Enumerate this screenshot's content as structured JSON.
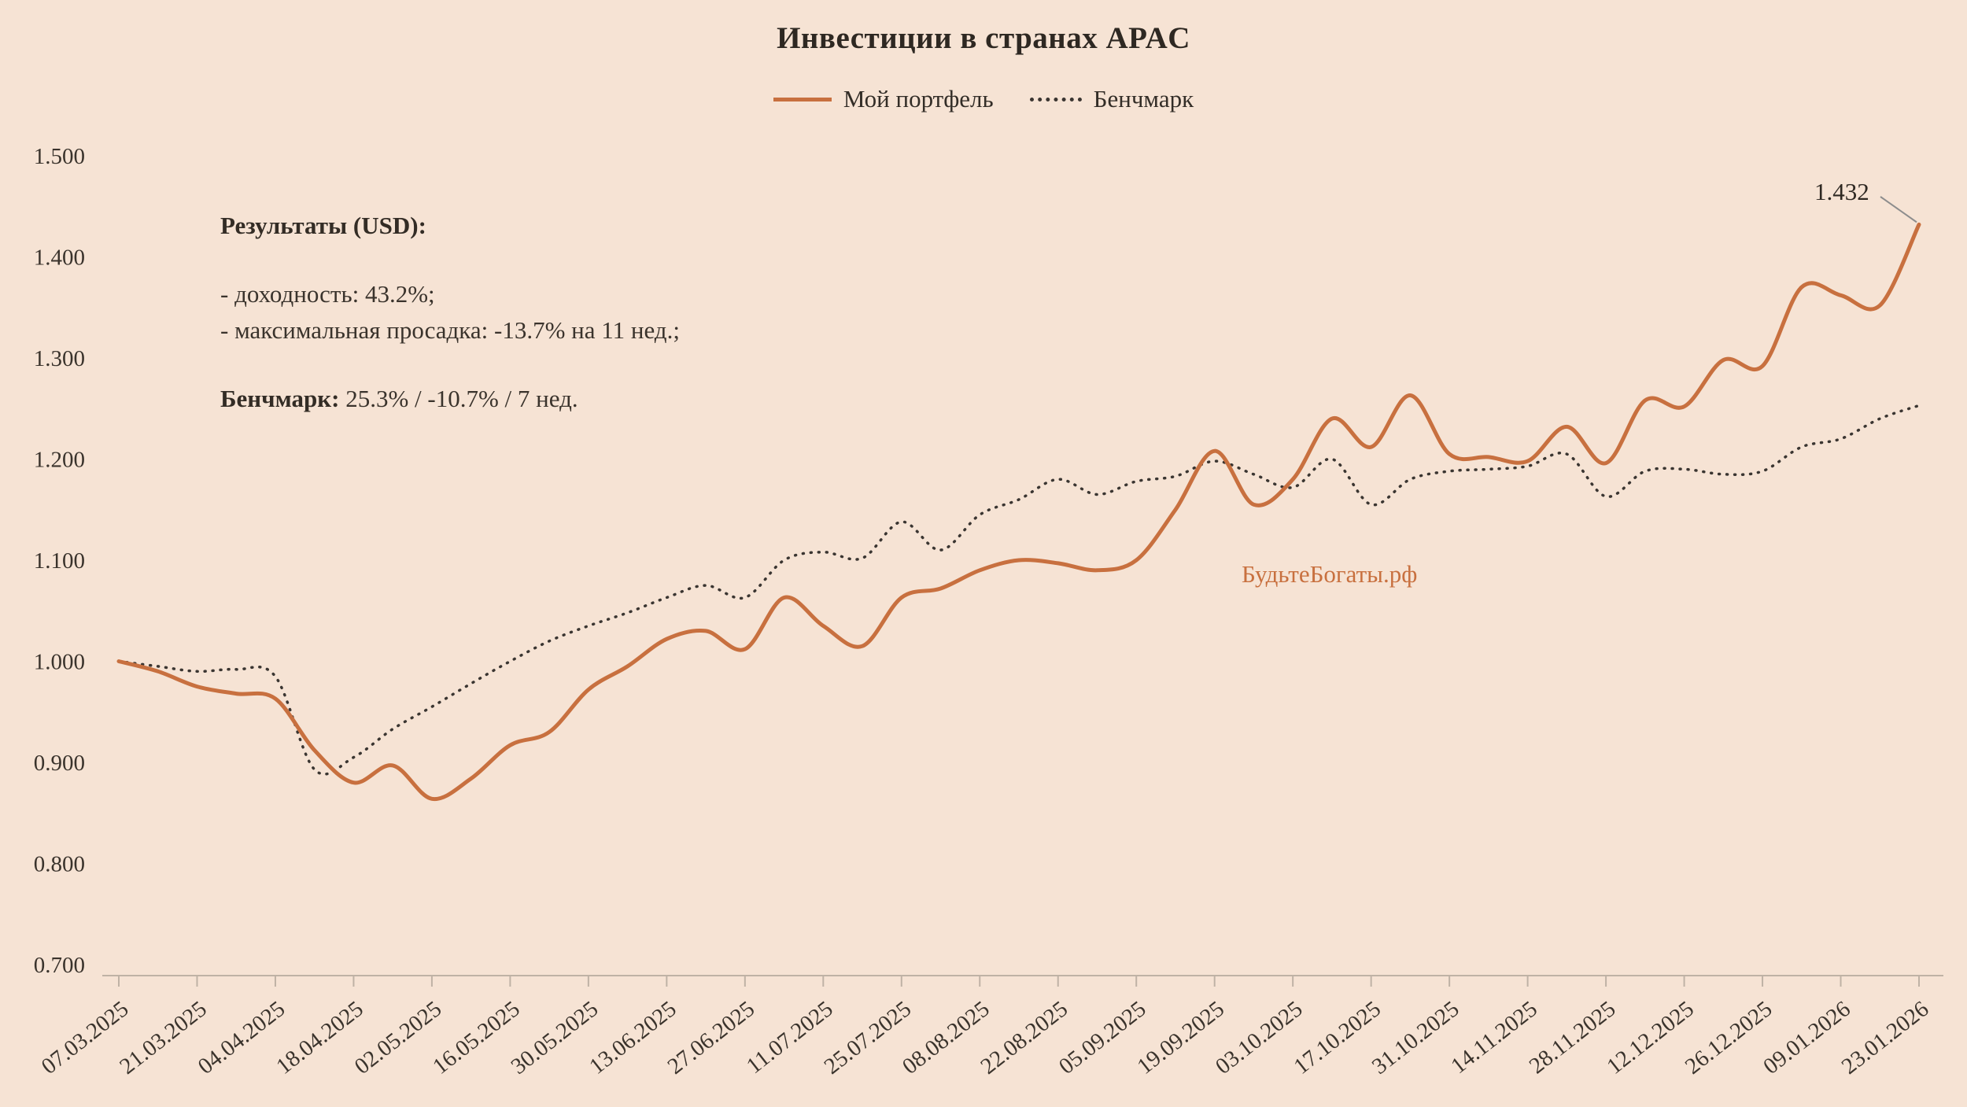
{
  "title": "Инвестиции в странах APAC",
  "legend": [
    {
      "label": "Мой портфель",
      "style": "solid",
      "color": "#c8703f"
    },
    {
      "label": "Бенчмарк",
      "style": "dotted",
      "color": "#3a3531"
    }
  ],
  "annotation": {
    "header": "Результаты (USD):",
    "line1": "- доходность: 43.2%;",
    "line2": "- максимальная просадка: -13.7% на 11 нед.;",
    "benchmark_label": "Бенчмарк:",
    "benchmark_value": " 25.3% / -10.7% / 7 нед."
  },
  "watermark": "БудьтеБогаты.рф",
  "end_label": "1.432",
  "colors": {
    "background": "#f6e3d4",
    "portfolio": "#c8703f",
    "benchmark": "#3a3531",
    "text": "#3a332c",
    "axis": "#bfb2a5"
  },
  "chart_data": {
    "type": "line",
    "title": "Инвестиции в странах APAC",
    "legend_position": "top-center",
    "grid": false,
    "ylim": [
      0.7,
      1.5
    ],
    "y_tick_labels": [
      "1.500",
      "1.400",
      "1.300",
      "1.200",
      "1.100",
      "1.000",
      "0.900",
      "0.800",
      "0.700"
    ],
    "x_tick_labels": [
      "07.03.2025",
      "21.03.2025",
      "04.04.2025",
      "18.04.2025",
      "02.05.2025",
      "16.05.2025",
      "30.05.2025",
      "13.06.2025",
      "27.06.2025",
      "11.07.2025",
      "25.07.2025",
      "08.08.2025",
      "22.08.2025",
      "05.09.2025",
      "19.09.2025",
      "03.10.2025",
      "17.10.2025",
      "31.10.2025",
      "14.11.2025",
      "28.11.2025",
      "12.12.2025",
      "26.12.2025",
      "09.01.2026",
      "23.01.2026"
    ],
    "x_tick_every_n_points": 2,
    "x_label_rotation_deg": -38,
    "final_value_annotation": "1.432",
    "series": [
      {
        "name": "Мой портфель",
        "style": "solid",
        "color": "#c8703f",
        "values": [
          1.0,
          0.99,
          0.975,
          0.968,
          0.963,
          0.912,
          0.88,
          0.897,
          0.864,
          0.884,
          0.917,
          0.93,
          0.972,
          0.995,
          1.022,
          1.03,
          1.012,
          1.063,
          1.035,
          1.015,
          1.063,
          1.072,
          1.09,
          1.1,
          1.097,
          1.09,
          1.1,
          1.15,
          1.208,
          1.155,
          1.18,
          1.24,
          1.212,
          1.263,
          1.205,
          1.202,
          1.198,
          1.232,
          1.196,
          1.258,
          1.252,
          1.298,
          1.292,
          1.37,
          1.362,
          1.352,
          1.432
        ]
      },
      {
        "name": "Бенчмарк",
        "style": "dotted",
        "color": "#3a3531",
        "values": [
          1.0,
          0.995,
          0.99,
          0.992,
          0.985,
          0.893,
          0.905,
          0.933,
          0.955,
          0.978,
          1.0,
          1.02,
          1.035,
          1.048,
          1.063,
          1.075,
          1.063,
          1.1,
          1.108,
          1.102,
          1.138,
          1.11,
          1.145,
          1.16,
          1.18,
          1.165,
          1.178,
          1.183,
          1.198,
          1.185,
          1.172,
          1.2,
          1.155,
          1.18,
          1.188,
          1.19,
          1.193,
          1.205,
          1.163,
          1.188,
          1.19,
          1.185,
          1.188,
          1.212,
          1.22,
          1.24,
          1.253
        ]
      }
    ]
  }
}
